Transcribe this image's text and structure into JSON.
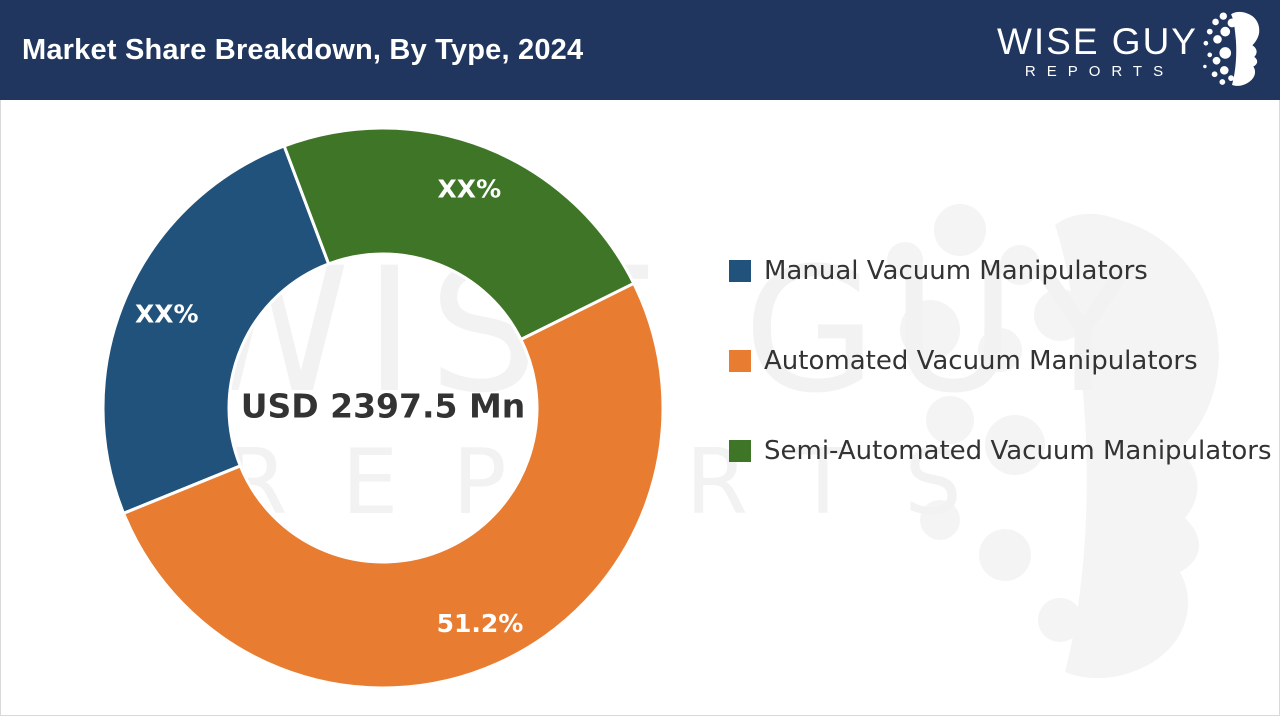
{
  "header": {
    "title": "Market Share Breakdown, By Type, 2024"
  },
  "logo": {
    "line1": "WISE GUY",
    "line2": "REPORTS"
  },
  "watermark": {
    "line1": "WISE GUY",
    "line2": "REPORTS"
  },
  "chart_data": {
    "type": "pie",
    "subtype": "donut",
    "title": "Market Share Breakdown, By Type, 2024",
    "center_label": "USD 2397.5 Mn",
    "unit": "percent",
    "start_angle_deg": 247.9,
    "donut_hole_ratio": 0.55,
    "legend_position": "right",
    "slices": [
      {
        "name": "Manual Vacuum Manipulators",
        "value": 25.4,
        "label": "XX%",
        "color": "#20527B"
      },
      {
        "name": "Semi-Automated Vacuum Manipulators",
        "value": 23.4,
        "label": "XX%",
        "color": "#3E7527"
      },
      {
        "name": "Automated Vacuum Manipulators",
        "value": 51.2,
        "label": "51.2%",
        "color": "#E87D31"
      }
    ],
    "legend": [
      {
        "label": "Manual Vacuum Manipulators",
        "color": "#20527B"
      },
      {
        "label": "Automated Vacuum Manipulators",
        "color": "#E87D31"
      },
      {
        "label": "Semi-Automated Vacuum Manipulators",
        "color": "#3E7527"
      }
    ]
  },
  "colors": {
    "header_bg": "#20365F",
    "text": "#333333",
    "border": "#D9D9D9",
    "watermark": "#F2F2F2",
    "slice_label_text": "#FFFFFF"
  }
}
